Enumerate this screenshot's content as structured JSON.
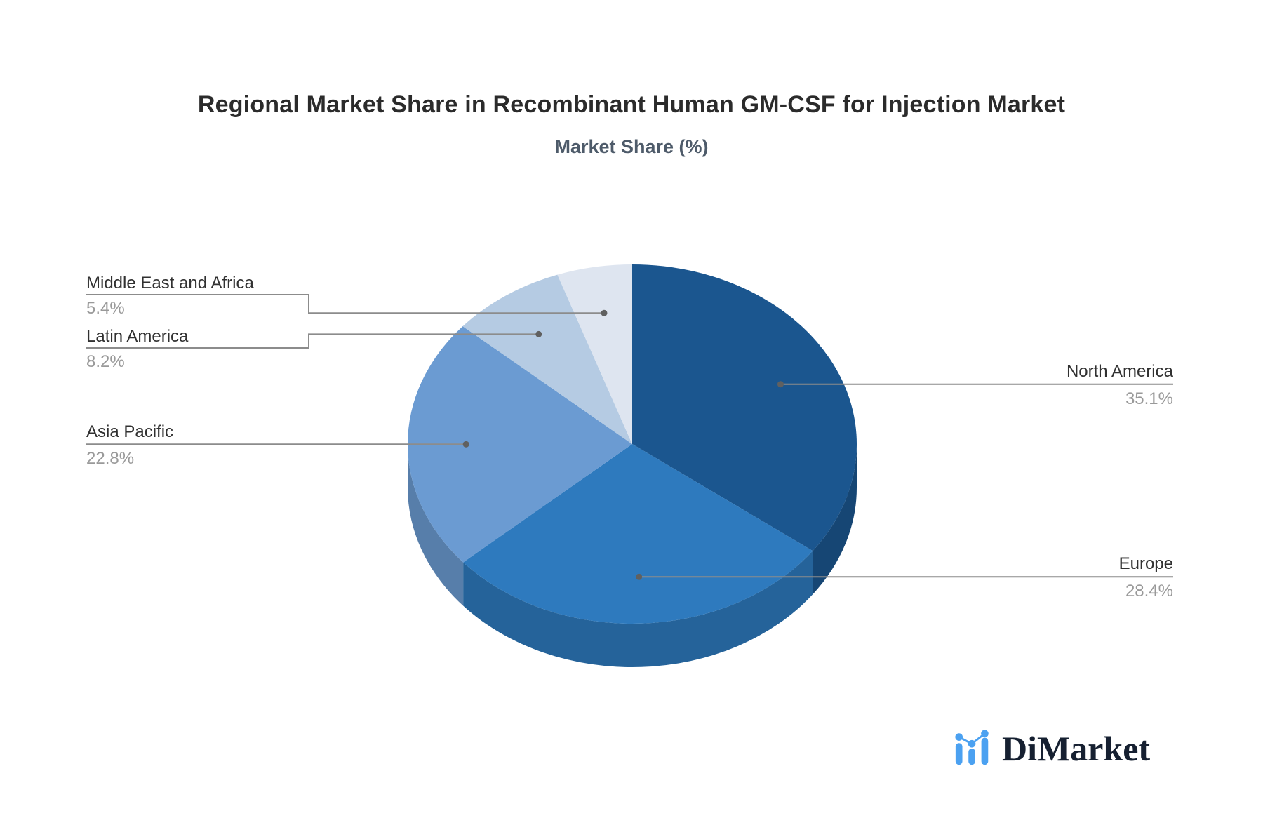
{
  "title": "Regional Market Share in Recombinant Human GM-CSF for Injection Market",
  "subtitle": "Market Share (%)",
  "brand": {
    "name": "DiMarket"
  },
  "chart_data": {
    "type": "pie",
    "title": "Regional Market Share in Recombinant Human GM-CSF for Injection Market",
    "subtitle": "Market Share (%)",
    "unit": "%",
    "direction": "clockwise",
    "start_angle_deg": 0,
    "effect": "3d-depth",
    "legend_position": "callout-labels",
    "slices": [
      {
        "label": "North America",
        "value": 35.1,
        "display": "35.1%",
        "color": "#1B568F",
        "side": "right"
      },
      {
        "label": "Europe",
        "value": 28.4,
        "display": "28.4%",
        "color": "#2E7ABE",
        "side": "right"
      },
      {
        "label": "Asia Pacific",
        "value": 22.8,
        "display": "22.8%",
        "color": "#6B9BD2",
        "side": "left"
      },
      {
        "label": "Latin America",
        "value": 8.2,
        "display": "8.2%",
        "color": "#B5CBE3",
        "side": "left"
      },
      {
        "label": "Middle East and Africa",
        "value": 5.4,
        "display": "5.4%",
        "color": "#DEE5F0",
        "side": "left"
      }
    ]
  },
  "colors": {
    "leader_line": "#8C8C8C",
    "leader_dot": "#606060",
    "label_text": "#313131",
    "pct_text": "#999999",
    "title_text": "#2B2B2B",
    "subtitle_text": "#4E5B6A",
    "brand_icon": "#4BA1F1",
    "brand_text": "#162031",
    "background": "#FFFFFF"
  }
}
